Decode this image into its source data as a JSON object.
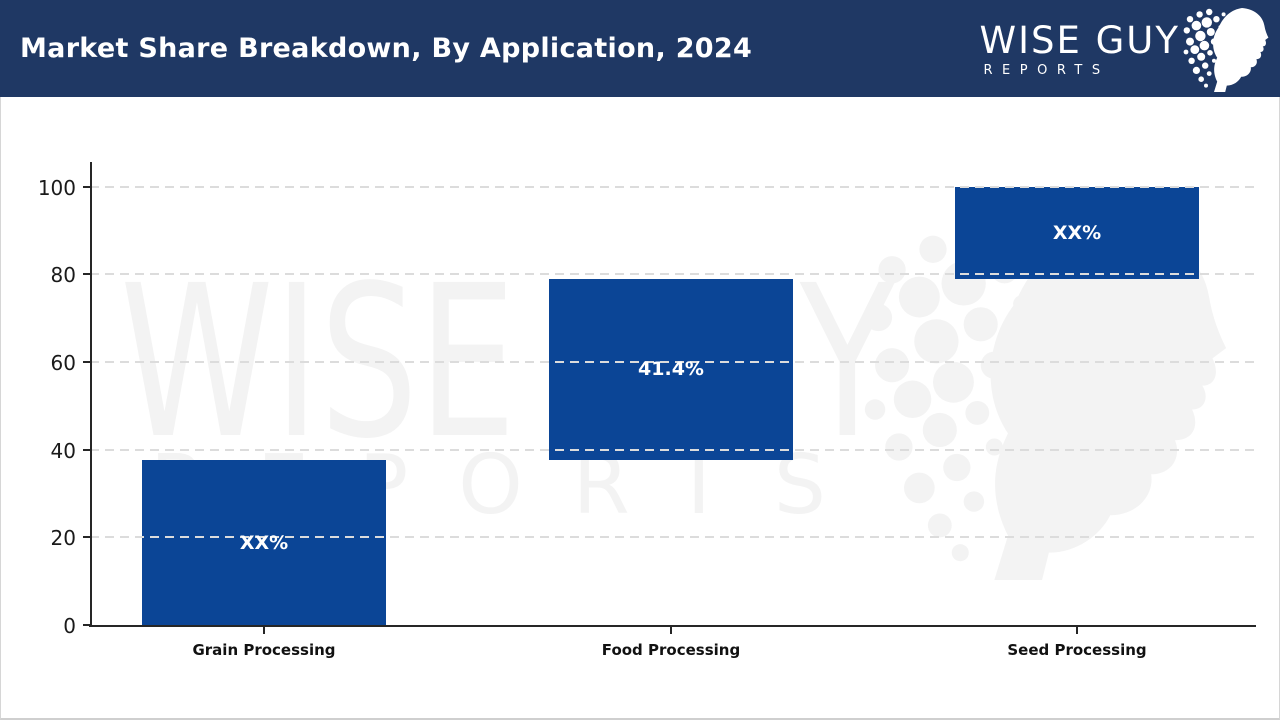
{
  "header": {
    "title": "Market Share Breakdown, By Application, 2024",
    "logo": {
      "line1": "WISE GUY",
      "line2": "REPORTS"
    }
  },
  "watermark": {
    "line1": "WISE GUY",
    "line2": "REPORTS"
  },
  "colors": {
    "header_bg": "#1f3864",
    "bar": "#0b4596",
    "axis": "#262626",
    "grid": "#dcdcdc",
    "watermark": "#f3f3f3",
    "label_on_bar": "#ffffff",
    "tick_text": "#1a1a1a"
  },
  "chart_data": {
    "type": "bar",
    "subtype": "waterfall",
    "title": "Market Share Breakdown, By Application, 2024",
    "categories": [
      "Grain Processing",
      "Food Processing",
      "Seed Processing"
    ],
    "segments": [
      {
        "category": "Grain Processing",
        "start": 0,
        "end": 37.6,
        "value": 37.6,
        "label": "XX%"
      },
      {
        "category": "Food Processing",
        "start": 37.6,
        "end": 79.0,
        "value": 41.4,
        "label": "41.4%"
      },
      {
        "category": "Seed Processing",
        "start": 79.0,
        "end": 100.0,
        "value": 21.0,
        "label": "XX%"
      }
    ],
    "values": [
      37.6,
      41.4,
      21.0
    ],
    "bar_labels": [
      "XX%",
      "41.4%",
      "XX%"
    ],
    "xlabel": "",
    "ylabel": "",
    "ylim": [
      0,
      100
    ],
    "yticks": [
      0,
      20,
      40,
      60,
      80,
      100
    ],
    "grid": "horizontal-dashed-over-bars",
    "legend": "none"
  }
}
